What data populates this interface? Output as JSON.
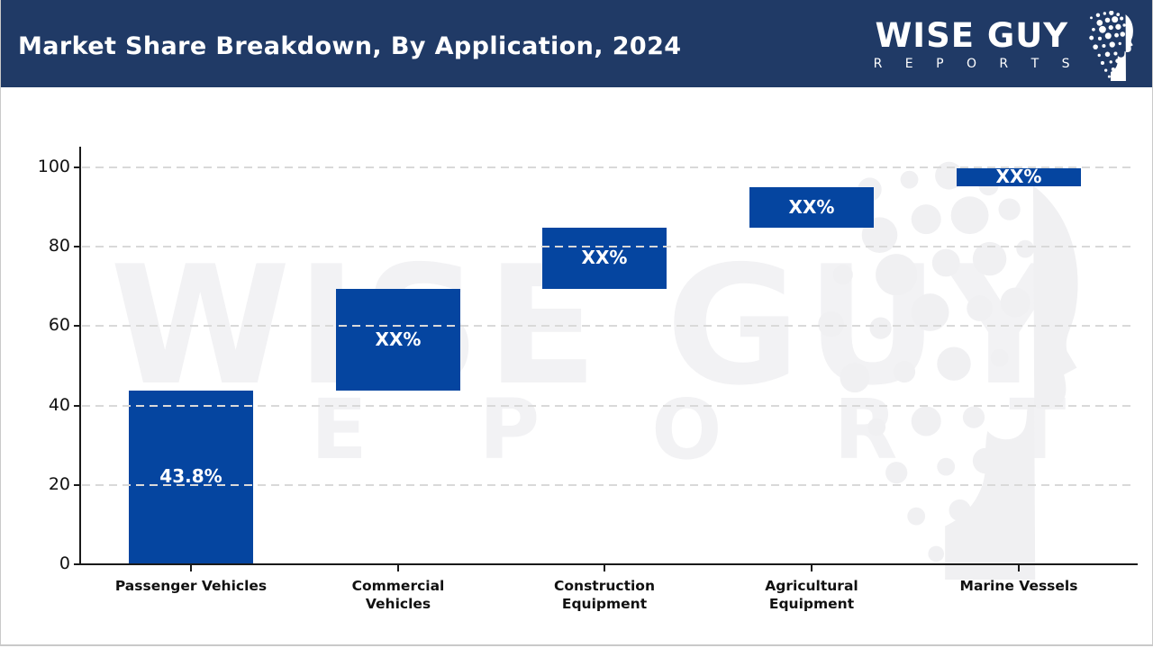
{
  "header": {
    "title": "Market Share Breakdown, By Application, 2024",
    "logo": {
      "line1": "WISE GUY",
      "line2": "R E P O R T S"
    }
  },
  "watermark": {
    "line1": "WISE GUY",
    "line2": "R E P O R T S"
  },
  "colors": {
    "header_bg": "#203a66",
    "bar": "#0545a0",
    "grid": "#d9d9d9",
    "axis": "#1a1a1a",
    "watermark": "#f2f2f4",
    "title_text": "#ffffff",
    "bar_label_text": "#ffffff"
  },
  "chart_data": {
    "type": "bar",
    "subtype": "waterfall",
    "title": "Market Share Breakdown, By Application, 2024",
    "categories": [
      "Passenger Vehicles",
      "Commercial Vehicles",
      "Construction Equipment",
      "Agricultural Equipment",
      "Marine Vessels"
    ],
    "segments": [
      {
        "category": "Passenger Vehicles",
        "label_lines": [
          "Passenger Vehicles"
        ],
        "start": 0,
        "end": 43.8,
        "value_label": "43.8%",
        "estimated_value": 43.8
      },
      {
        "category": "Commercial Vehicles",
        "label_lines": [
          "Commercial",
          "Vehicles"
        ],
        "start": 43.8,
        "end": 69.3,
        "value_label": "XX%",
        "estimated_value": 25.5
      },
      {
        "category": "Construction Equipment",
        "label_lines": [
          "Construction",
          "Equipment"
        ],
        "start": 69.3,
        "end": 84.8,
        "value_label": "XX%",
        "estimated_value": 15.5
      },
      {
        "category": "Agricultural Equipment",
        "label_lines": [
          "Agricultural",
          "Equipment"
        ],
        "start": 84.8,
        "end": 94.9,
        "value_label": "XX%",
        "estimated_value": 10.1
      },
      {
        "category": "Marine Vessels",
        "label_lines": [
          "Marine Vessels"
        ],
        "start": 95.2,
        "end": 99.7,
        "value_label": "XX%",
        "estimated_value": 4.5
      }
    ],
    "yticks": [
      0,
      20,
      40,
      60,
      80,
      100
    ],
    "ylim": [
      0,
      104
    ],
    "xlabel": "",
    "ylabel": "",
    "grid": "horizontal-dashed",
    "legend": "none"
  }
}
